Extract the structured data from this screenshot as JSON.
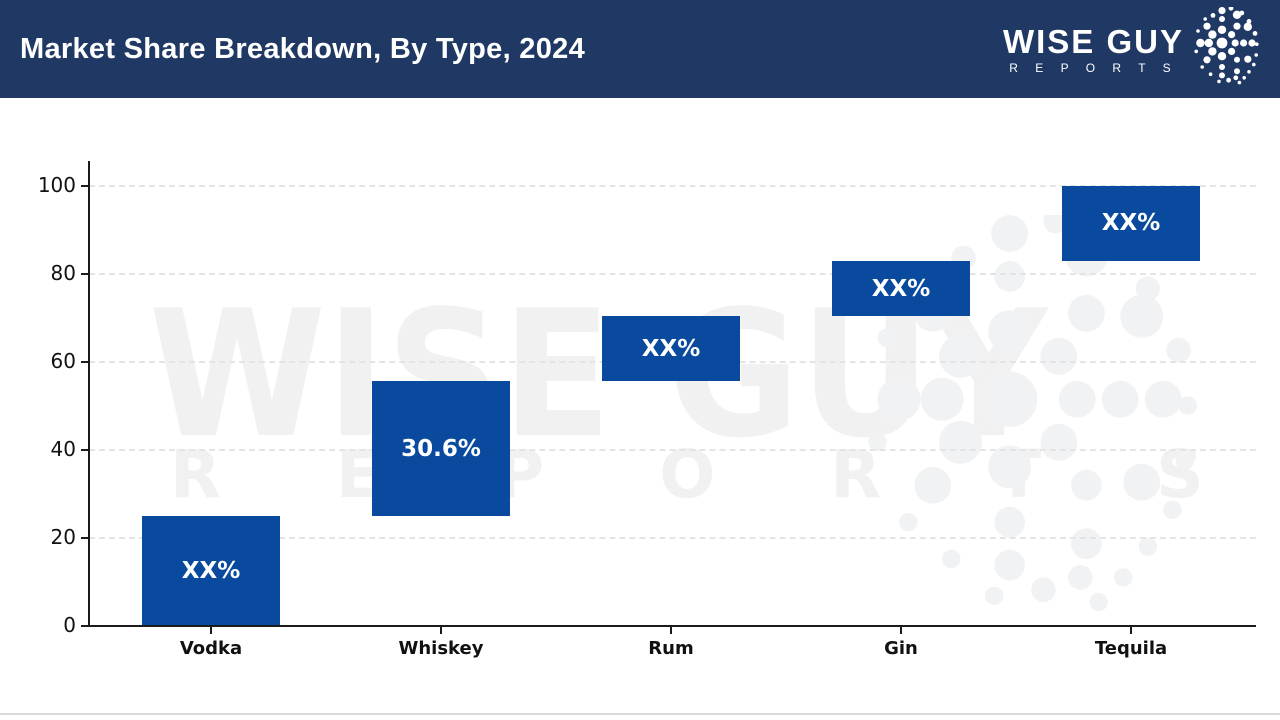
{
  "page": {
    "background": "#ffffff"
  },
  "header": {
    "background": "#1f3864",
    "title": "Market Share Breakdown, By Type, 2024",
    "brand": {
      "name": "WISE GUY REPORTS",
      "line1": "WISE GUY",
      "line2": "R E P O R T S"
    }
  },
  "watermark": {
    "line1": "WISE GUY",
    "line2": "R E P O R T S"
  },
  "chart_data": {
    "type": "bar",
    "variant": "waterfall",
    "title": "Market Share Breakdown, By Type, 2024",
    "categories": [
      "Vodka",
      "Whiskey",
      "Rum",
      "Gin",
      "Tequila"
    ],
    "series": [
      {
        "name": "Market share (%)",
        "starts": [
          0,
          25,
          55.6,
          70.4,
          83
        ],
        "ends": [
          25,
          55.6,
          70.4,
          83,
          100
        ]
      }
    ],
    "bar_labels": [
      "XX%",
      "30.6%",
      "XX%",
      "XX%",
      "XX%"
    ],
    "ylim": [
      0,
      100
    ],
    "yticks": [
      0,
      20,
      40,
      60,
      80,
      100
    ],
    "grid": "horizontal-dashed",
    "legend": "none",
    "colors": {
      "bar": "#0a4a9e",
      "bar_label": "#ffffff",
      "axis": "#1a1a1a",
      "grid": "#e4e4e4"
    }
  },
  "footer": {
    "divider_color": "#d9d9d9"
  }
}
